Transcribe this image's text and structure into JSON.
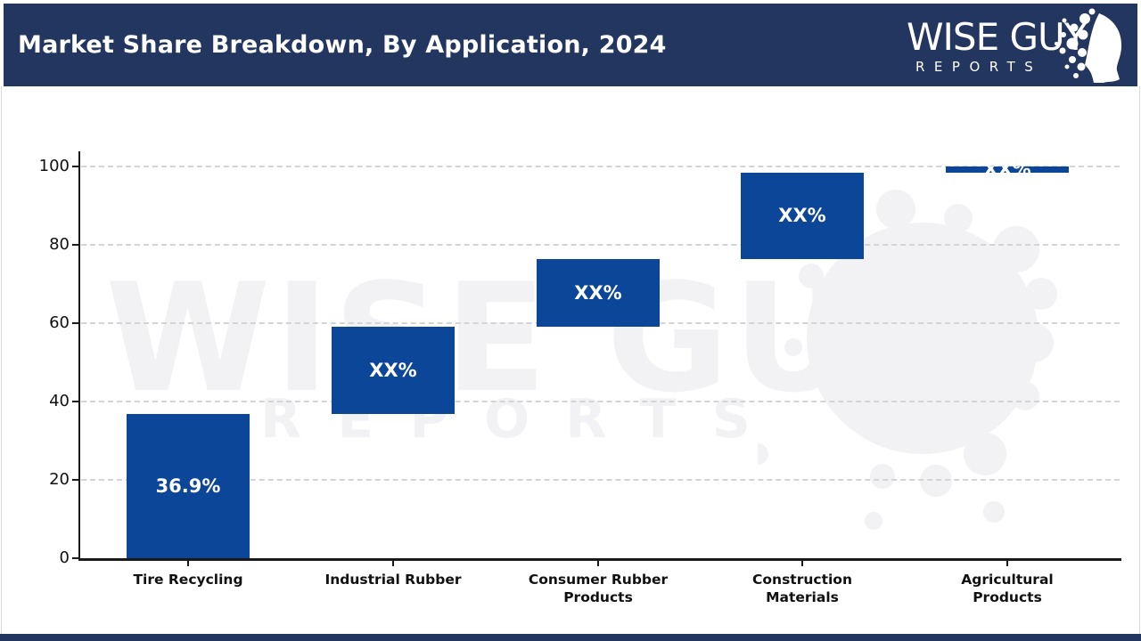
{
  "header": {
    "title": "Market Share Breakdown, By Application, 2024",
    "background": "#22365f",
    "logo": {
      "line1": "WISE GUY",
      "line2": "REPORTS"
    }
  },
  "footer": {
    "background": "#22365f"
  },
  "watermark": {
    "line1": "WISE GUY",
    "line2": "REPORTS"
  },
  "chart_data": {
    "type": "bar",
    "subtype": "waterfall-stacked-percentage",
    "title": "Market Share Breakdown, By Application, 2024",
    "categories": [
      "Tire Recycling",
      "Industrial Rubber",
      "Consumer Rubber\nProducts",
      "Construction\nMaterials",
      "Agricultural\nProducts"
    ],
    "segments": [
      {
        "category": "Tire Recycling",
        "label": "36.9%",
        "start": 0,
        "end": 36.9
      },
      {
        "category": "Industrial Rubber",
        "label": "XX%",
        "start": 36.9,
        "end": 59.0
      },
      {
        "category": "Consumer Rubber Products",
        "label": "XX%",
        "start": 59.0,
        "end": 76.3
      },
      {
        "category": "Construction Materials",
        "label": "XX%",
        "start": 76.3,
        "end": 98.5
      },
      {
        "category": "Agricultural Products",
        "label": "XX%",
        "start": 98.5,
        "end": 100
      }
    ],
    "yticks": [
      "0",
      "20",
      "40",
      "60",
      "80",
      "100"
    ],
    "ylim": [
      0,
      104
    ],
    "grid": "horizontal-dashed",
    "legend": "none",
    "bar_color": "#0c4699",
    "bar_label_color": "#ffffff",
    "axis_color": "#1a1a1a"
  }
}
